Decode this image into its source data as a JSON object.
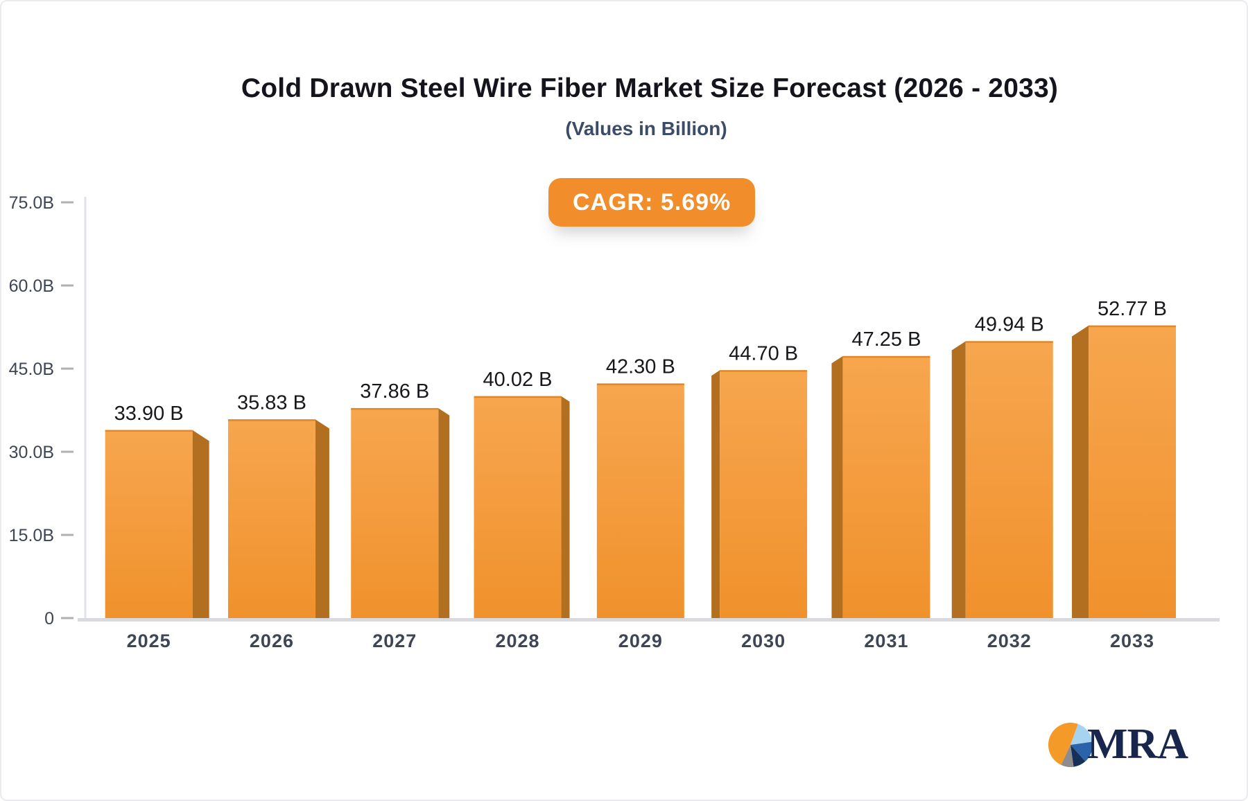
{
  "header": {
    "title": "Cold Drawn Steel Wire Fiber Market Size Forecast (2026 - 2033)",
    "subtitle": "(Values in Billion)"
  },
  "badge": {
    "label": "CAGR: 5.69%",
    "bg": "#F18E2B",
    "text_color": "#FFFFFF"
  },
  "chart_data": {
    "type": "bar",
    "title": "Cold Drawn Steel Wire Fiber Market Size Forecast (2026 - 2033)",
    "subtitle": "(Values in Billion)",
    "categories": [
      "2025",
      "2026",
      "2027",
      "2028",
      "2029",
      "2030",
      "2031",
      "2032",
      "2033"
    ],
    "values": [
      33.9,
      35.83,
      37.86,
      40.02,
      42.3,
      44.7,
      47.25,
      49.94,
      52.77
    ],
    "value_labels": [
      "33.90 B",
      "35.83 B",
      "37.86 B",
      "40.02 B",
      "42.30 B",
      "44.70 B",
      "47.25 B",
      "49.94 B",
      "52.77 B"
    ],
    "xlabel": "",
    "ylabel": "",
    "ylim": [
      0,
      75
    ],
    "yticks": [
      0,
      15,
      30,
      45,
      60,
      75
    ],
    "ytick_labels": [
      "0",
      "15.0B",
      "30.0B",
      "45.0B",
      "60.0B",
      "75.0B"
    ],
    "grid": false,
    "legend": null,
    "bar_face_gradient": [
      "#F7A64F",
      "#F0912C"
    ],
    "bar_top_edge_color": "#E08727",
    "bar_side_color": "#B26F1F",
    "axis_line_color": "#E2E3E8",
    "baseline_color": "#D8DADE",
    "tick_color": "#ADB2BA",
    "tick_label_color": "#3E4656",
    "value_label_color": "#17181C"
  },
  "logo": {
    "text": "MRA",
    "text_color": "#18254d",
    "pie": {
      "slices": [
        {
          "name": "orange",
          "from": 205,
          "to": 380,
          "color": "#F49A28"
        },
        {
          "name": "light-blue",
          "from": 20,
          "to": 82,
          "color": "#A8D3F0"
        },
        {
          "name": "royal-blue",
          "from": 82,
          "to": 138,
          "color": "#2A63A9"
        },
        {
          "name": "navy",
          "from": 138,
          "to": 172,
          "color": "#173059"
        },
        {
          "name": "gray",
          "from": 172,
          "to": 205,
          "color": "#8E8C8C"
        }
      ]
    }
  }
}
